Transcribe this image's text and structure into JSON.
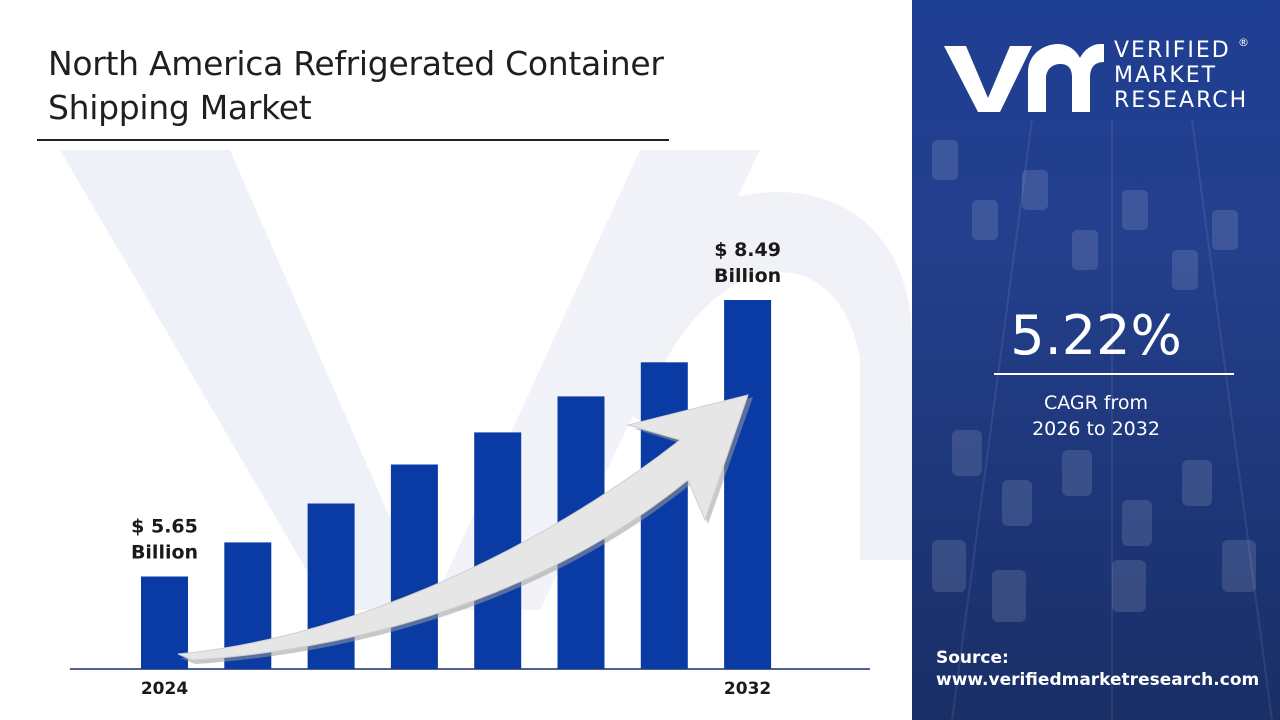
{
  "title": {
    "line1": "North America Refrigerated Container",
    "line2": "Shipping Market"
  },
  "brand": {
    "line1": "VERIFIED",
    "line2": "MARKET",
    "line3": "RESEARCH",
    "registered": "®"
  },
  "cagr": {
    "value": "5.22%",
    "label_line1": "CAGR from",
    "label_line2": "2026 to 2032"
  },
  "source": {
    "label": "Source:",
    "url": "www.verifiedmarketresearch.com"
  },
  "colors": {
    "bar": "#0a3ba5",
    "panel": "#1f3f93",
    "arrow": "#e6e6e6"
  },
  "chart_data": {
    "type": "bar",
    "categories": [
      "2024",
      "",
      "",
      "",
      "",
      "",
      "",
      "2032"
    ],
    "values": [
      5.65,
      6.0,
      6.4,
      6.8,
      7.13,
      7.5,
      7.85,
      8.49
    ],
    "axis_labels": [
      {
        "index": 0,
        "text": "2024"
      },
      {
        "index": 7,
        "text": "2032"
      }
    ],
    "annotations": [
      {
        "index": 0,
        "line1": "$ 5.65",
        "line2": "Billion"
      },
      {
        "index": 7,
        "line1": "$ 8.49",
        "line2": "Billion"
      }
    ],
    "title": "",
    "xlabel": "",
    "ylabel": "",
    "ylim": [
      4.7,
      8.49
    ],
    "grid": false,
    "legend": "none",
    "trend_arrow": true
  }
}
